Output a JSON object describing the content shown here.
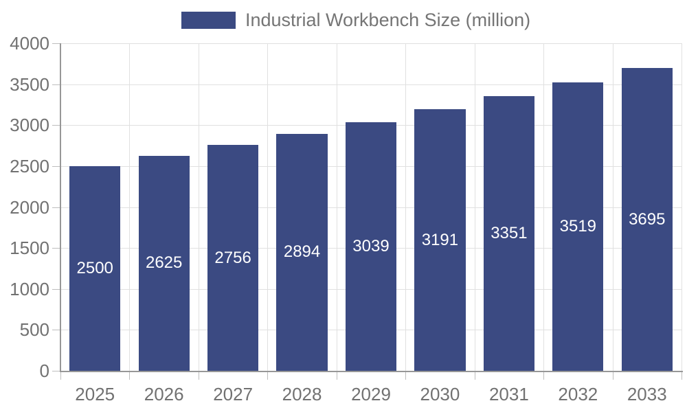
{
  "chart_data": {
    "type": "bar",
    "title": "",
    "legend_label": "Industrial Workbench Size (million)",
    "legend_position": "top",
    "categories": [
      "2025",
      "2026",
      "2027",
      "2028",
      "2029",
      "2030",
      "2031",
      "2032",
      "2033"
    ],
    "values": [
      2500,
      2625,
      2756,
      2894,
      3039,
      3191,
      3351,
      3519,
      3695
    ],
    "yticks": [
      0,
      500,
      1000,
      1500,
      2000,
      2500,
      3000,
      3500,
      4000
    ],
    "ylim": [
      0,
      4000
    ],
    "xlabel": "",
    "ylabel": "",
    "grid": true,
    "bar_color": "#3B4A82",
    "bar_label_color": "#ffffff",
    "axis_text_color": "#717171",
    "legend_text_color": "#757575",
    "grid_color": "#e0e0e0",
    "axis_line_color": "#979797",
    "background_color": "#ffffff"
  }
}
